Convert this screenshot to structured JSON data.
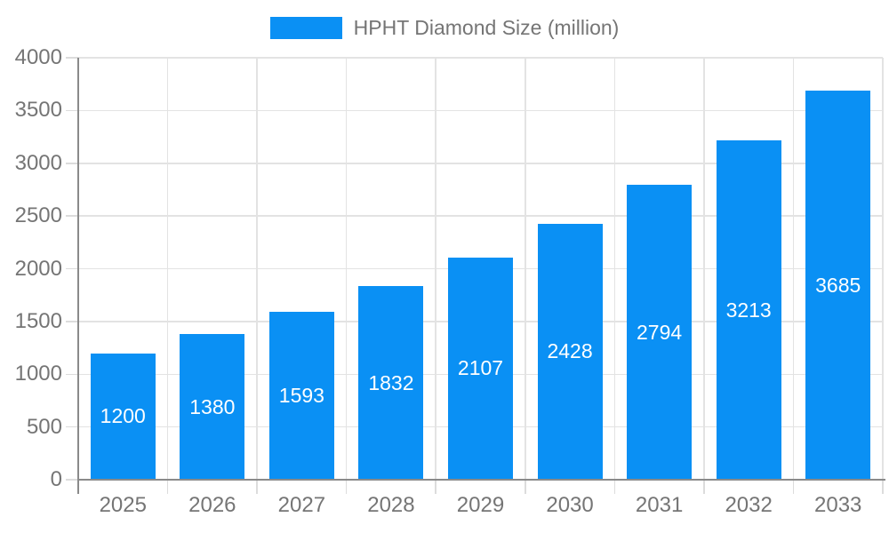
{
  "chart_data": {
    "type": "bar",
    "title": "HPHT Diamond Size (million)",
    "categories": [
      "2025",
      "2026",
      "2027",
      "2028",
      "2029",
      "2030",
      "2031",
      "2032",
      "2033"
    ],
    "series": [
      {
        "name": "HPHT Diamond Size (million)",
        "values": [
          1200,
          1380,
          1593,
          1832,
          2107,
          2428,
          2794,
          3213,
          3685
        ]
      }
    ],
    "legend": [
      "HPHT Diamond Size (million)"
    ],
    "legend_position": "top-center",
    "xlabel": "",
    "ylabel": "",
    "ylim": [
      0,
      4000
    ],
    "ytick_step": 500,
    "ytick_labels": [
      "0",
      "500",
      "1000",
      "1500",
      "2000",
      "2500",
      "3000",
      "3500",
      "4000"
    ],
    "grid": true,
    "value_labels": {
      "visible": true,
      "position": "center-of-bar"
    },
    "colors": {
      "bar": "#0a90f4",
      "grid": "#e3e3e3",
      "axis": "#8a8a8a",
      "tick": "#dcdcdc",
      "axis_text": "#757575",
      "value_text": "#ffffff",
      "background": "#ffffff"
    }
  }
}
